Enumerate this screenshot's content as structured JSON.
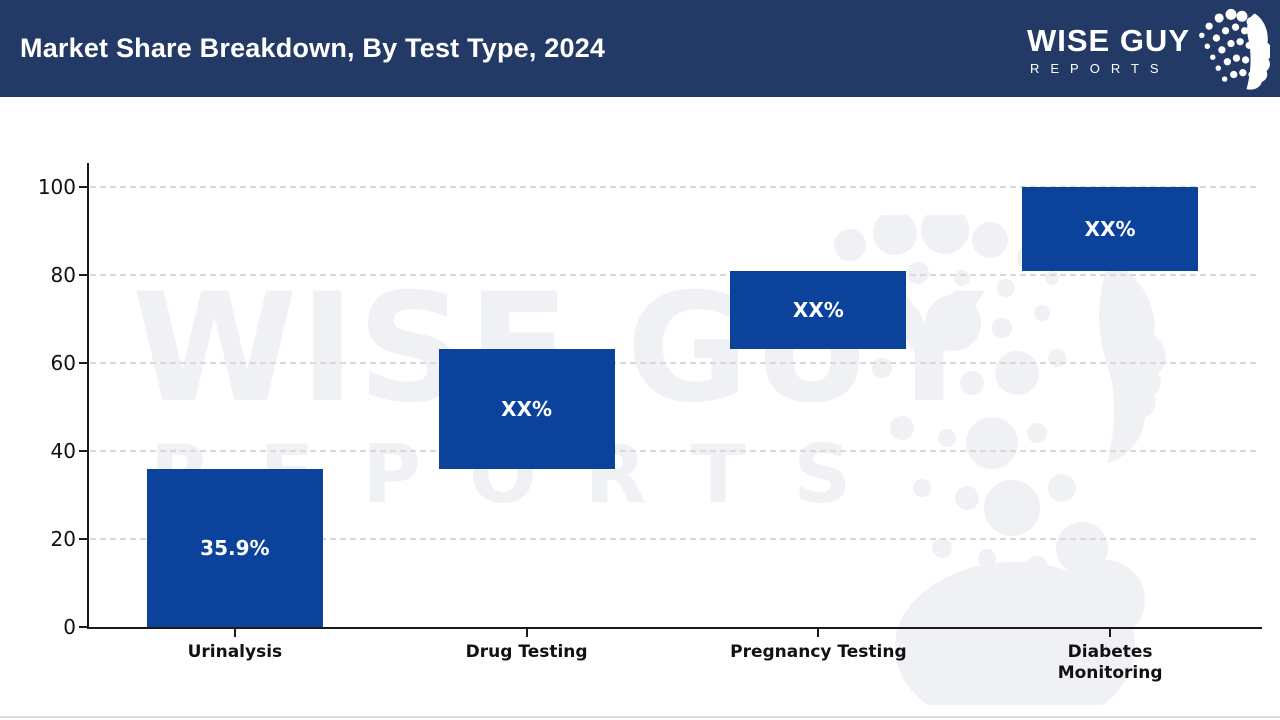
{
  "header": {
    "title": "Market Share Breakdown, By Test Type, 2024",
    "bg_color": "#233A66",
    "logo": {
      "line1": "WISE GUY",
      "line2": "REPORTS"
    }
  },
  "watermark": {
    "line1": "WISE GUY",
    "line2": "REPORTS"
  },
  "chart_data": {
    "type": "bar",
    "subtype": "floating-waterfall",
    "title": "Market Share Breakdown, By Test Type, 2024",
    "categories": [
      "Urinalysis",
      "Drug Testing",
      "Pregnancy Testing",
      "Diabetes\nMonitoring"
    ],
    "segments": [
      {
        "category": "Urinalysis",
        "start": 0,
        "end": 35.9,
        "label": "35.9%"
      },
      {
        "category": "Drug Testing",
        "start": 35.9,
        "end": 63.2,
        "label": "XX%"
      },
      {
        "category": "Pregnancy Testing",
        "start": 63.2,
        "end": 81.0,
        "label": "XX%"
      },
      {
        "category": "Diabetes\nMonitoring",
        "start": 81.0,
        "end": 100,
        "label": "XX%"
      }
    ],
    "xlabel": "",
    "ylabel": "",
    "ylim": [
      0,
      105
    ],
    "yticks": [
      0,
      20,
      40,
      60,
      80,
      100
    ],
    "grid": "horizontal-dashed",
    "legend": "none",
    "bar_color": "#0B429C",
    "bar_label_color": "#FFFFFF",
    "axis_color": "#1A1A1A",
    "gridline_color": "#D9D9D9"
  }
}
